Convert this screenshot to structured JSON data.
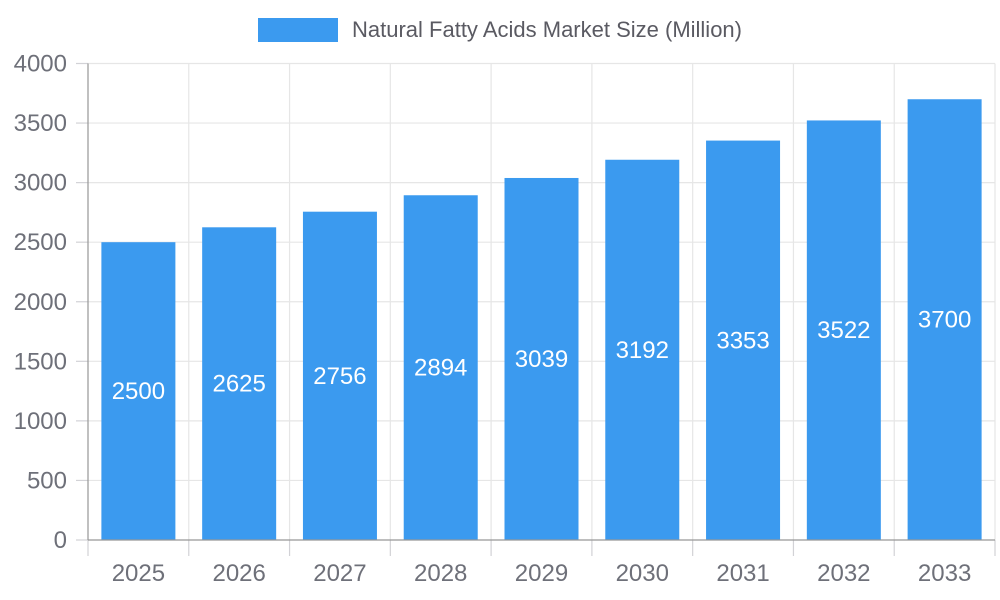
{
  "chart_data": {
    "type": "bar",
    "title": "Natural Fatty Acids Market Size (Million)",
    "legend": {
      "position": "top",
      "label": "Natural Fatty Acids Market Size (Million)"
    },
    "categories": [
      "2025",
      "2026",
      "2027",
      "2028",
      "2029",
      "2030",
      "2031",
      "2032",
      "2033"
    ],
    "values": [
      2500,
      2625,
      2756,
      2894,
      3039,
      3192,
      3353,
      3522,
      3700
    ],
    "data_labels": [
      "2500",
      "2625",
      "2756",
      "2894",
      "3039",
      "3192",
      "3353",
      "3522",
      "3700"
    ],
    "xlabel": "",
    "ylabel": "",
    "ylim": [
      0,
      4000
    ],
    "ytick_step": 500,
    "yticks": [
      0,
      500,
      1000,
      1500,
      2000,
      2500,
      3000,
      3500,
      4000
    ],
    "grid": true,
    "colors": {
      "bar": "#3B9AEF",
      "bar_label_text": "#FFFFFF",
      "axis_line": "#979797",
      "grid_line": "#E6E6E6",
      "tick_line": "#D2D2D6",
      "axis_text": "#6E7079",
      "legend_text": "#5A5A62",
      "background": "#FFFFFF"
    }
  }
}
